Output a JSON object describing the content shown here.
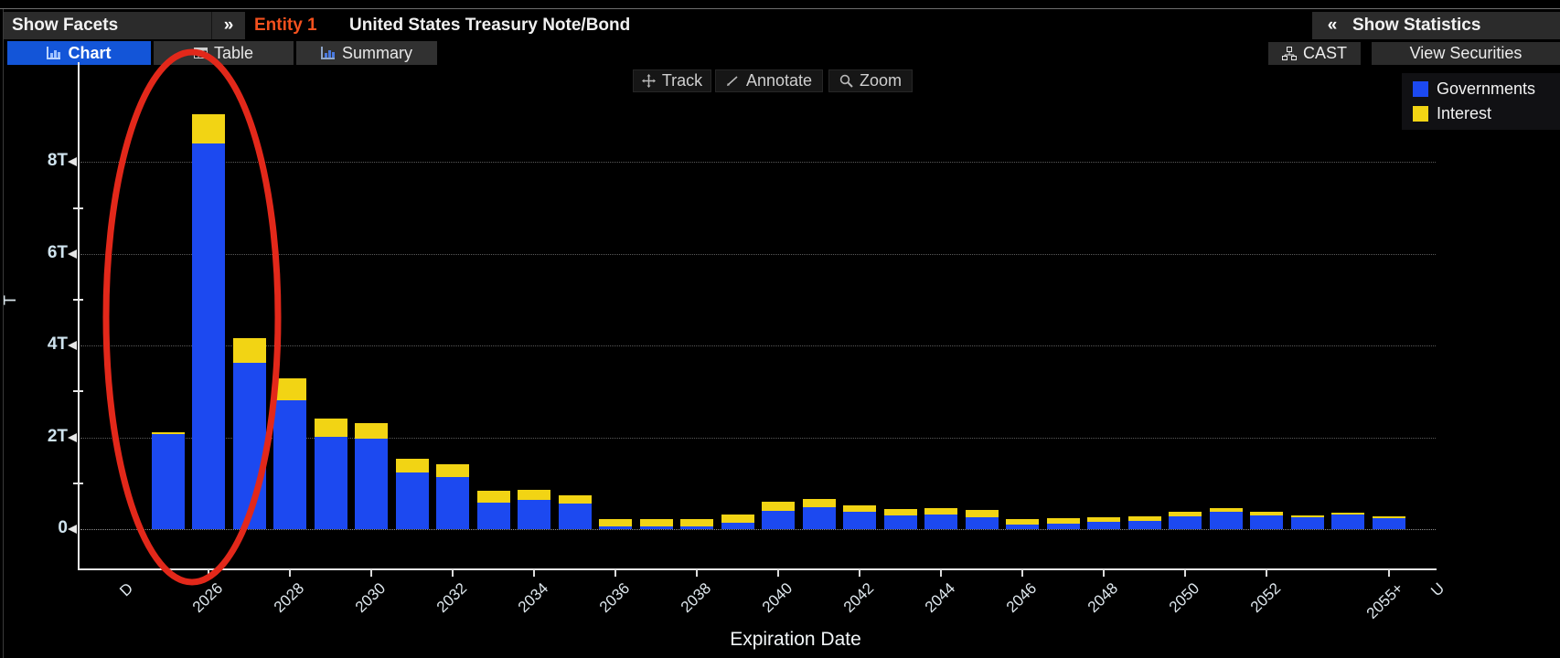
{
  "header": {
    "show_facets_label": "Show Facets",
    "chevron_right": "»",
    "entity_label": "Entity 1",
    "security_title": "United States Treasury Note/Bond",
    "chevron_left": "«",
    "show_statistics_label": "Show Statistics"
  },
  "tabs": [
    {
      "label": "Chart",
      "active": true
    },
    {
      "label": "Table",
      "active": false
    },
    {
      "label": "Summary",
      "active": false
    }
  ],
  "actions": {
    "cast_label": "CAST",
    "view_securities_label": "View Securities"
  },
  "chart_toolbar": {
    "track_label": "Track",
    "annotate_label": "Annotate",
    "zoom_label": "Zoom"
  },
  "legend": [
    {
      "label": "Governments",
      "color": "#1c49f0"
    },
    {
      "label": "Interest",
      "color": "#f2d414"
    }
  ],
  "colors": {
    "background": "#000000",
    "bar_blue": "#1c49f0",
    "bar_yellow": "#f2d414",
    "active_tab_blue": "#1355d8",
    "entity_orange": "#f4511e",
    "annotation_red": "#e2281a",
    "axis_white": "#e6e6e6"
  },
  "chart_data": {
    "type": "bar",
    "stacked": true,
    "xlabel": "Expiration Date",
    "ylabel": "T",
    "ylim": [
      0,
      9.5
    ],
    "grid": "horizontal-dotted",
    "legend_position": "top-right",
    "categories": [
      "2025",
      "2026",
      "2027",
      "2028",
      "2029",
      "2030",
      "2031",
      "2032",
      "2033",
      "2034",
      "2035",
      "2036",
      "2037",
      "2038",
      "2039",
      "2040",
      "2041",
      "2042",
      "2043",
      "2044",
      "2045",
      "2046",
      "2047",
      "2048",
      "2049",
      "2050",
      "2051",
      "2052",
      "2053",
      "2054",
      "2055+"
    ],
    "series": [
      {
        "name": "Governments",
        "color": "#1c49f0",
        "values": [
          2.08,
          8.4,
          3.62,
          2.8,
          2.02,
          1.98,
          1.23,
          1.13,
          0.58,
          0.63,
          0.55,
          0.05,
          0.05,
          0.05,
          0.14,
          0.4,
          0.48,
          0.38,
          0.3,
          0.32,
          0.26,
          0.1,
          0.12,
          0.16,
          0.18,
          0.28,
          0.38,
          0.3,
          0.26,
          0.32,
          0.24
        ]
      },
      {
        "name": "Interest",
        "color": "#f2d414",
        "values": [
          0.04,
          0.65,
          0.55,
          0.48,
          0.4,
          0.34,
          0.31,
          0.29,
          0.25,
          0.22,
          0.18,
          0.17,
          0.17,
          0.16,
          0.18,
          0.19,
          0.18,
          0.13,
          0.14,
          0.14,
          0.16,
          0.12,
          0.12,
          0.1,
          0.1,
          0.1,
          0.08,
          0.08,
          0.04,
          0.04,
          0.04
        ]
      }
    ],
    "ytick_values": [
      0,
      2,
      4,
      6,
      8
    ],
    "ytick_labels": [
      "0",
      "2T",
      "4T",
      "6T",
      "8T"
    ],
    "ytick_minor_values": [
      1,
      3,
      5,
      7
    ],
    "xtick_labels": [
      "2026",
      "2028",
      "2030",
      "2032",
      "2034",
      "2036",
      "2038",
      "2040",
      "2042",
      "2044",
      "2046",
      "2048",
      "2050",
      "2052",
      "2055+"
    ],
    "axis_end_labels": {
      "left": "D",
      "right": "U"
    },
    "annotation": {
      "type": "ellipse",
      "color": "#e2281a",
      "circles": "2025-2027 maturities"
    }
  }
}
